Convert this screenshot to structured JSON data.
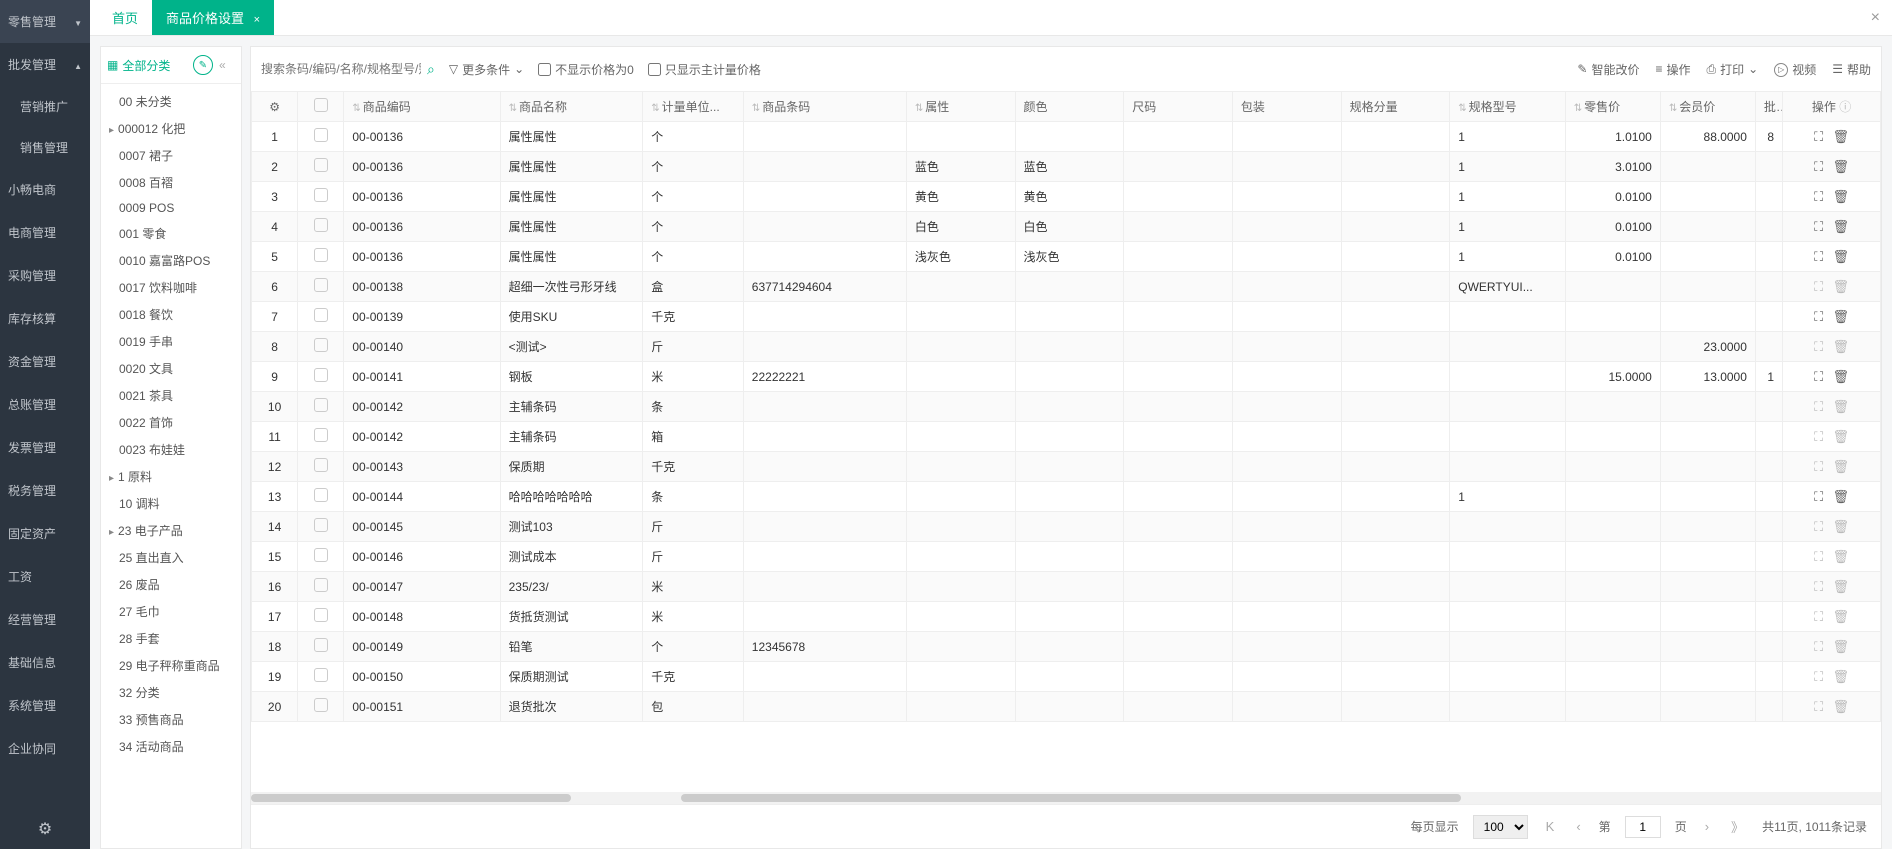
{
  "sidebar": {
    "items": [
      {
        "label": "零售管理",
        "caret": "down"
      },
      {
        "label": "批发管理",
        "caret": "up",
        "children": [
          {
            "label": "营销推广"
          },
          {
            "label": "销售管理"
          }
        ]
      },
      {
        "label": "小畅电商"
      },
      {
        "label": "电商管理"
      },
      {
        "label": "采购管理"
      },
      {
        "label": "库存核算"
      },
      {
        "label": "资金管理"
      },
      {
        "label": "总账管理"
      },
      {
        "label": "发票管理"
      },
      {
        "label": "税务管理"
      },
      {
        "label": "固定资产"
      },
      {
        "label": "工资"
      },
      {
        "label": "经营管理"
      },
      {
        "label": "基础信息"
      },
      {
        "label": "系统管理"
      },
      {
        "label": "企业协同"
      }
    ]
  },
  "tabs": {
    "home": "首页",
    "active": "商品价格设置",
    "close_icon": "×"
  },
  "tree": {
    "title": "全部分类",
    "items": [
      {
        "label": "00 未分类"
      },
      {
        "label": "000012 化把",
        "expandable": true
      },
      {
        "label": "0007 裙子"
      },
      {
        "label": "0008 百褶"
      },
      {
        "label": "0009 POS"
      },
      {
        "label": "001 零食"
      },
      {
        "label": "0010 嘉富路POS"
      },
      {
        "label": "0017 饮料咖啡"
      },
      {
        "label": "0018 餐饮"
      },
      {
        "label": "0019 手串"
      },
      {
        "label": "0020 文具"
      },
      {
        "label": "0021 茶具"
      },
      {
        "label": "0022 首饰"
      },
      {
        "label": "0023 布娃娃"
      },
      {
        "label": "1 原料",
        "expandable": true
      },
      {
        "label": "10 调料"
      },
      {
        "label": "23 电子产品",
        "expandable": true
      },
      {
        "label": "25 直出直入"
      },
      {
        "label": "26 废品"
      },
      {
        "label": "27 毛巾"
      },
      {
        "label": "28 手套"
      },
      {
        "label": "29 电子秤称重商品"
      },
      {
        "label": "32 分类"
      },
      {
        "label": "33 预售商品"
      },
      {
        "label": "34 活动商品"
      }
    ]
  },
  "toolbar": {
    "search_placeholder": "搜索条码/编码/名称/规格型号/别名",
    "more_conditions": "更多条件",
    "hide_zero": "不显示价格为0",
    "only_main_unit": "只显示主计量价格",
    "smart_edit": "智能改价",
    "operate": "操作",
    "print": "打印",
    "video": "视频",
    "help": "帮助"
  },
  "columns": {
    "gear": "⚙",
    "code": "商品编码",
    "name": "商品名称",
    "unit": "计量单位...",
    "barcode": "商品条码",
    "attr": "属性",
    "color": "颜色",
    "size": "尺码",
    "pack": "包装",
    "spec_weight": "规格分量",
    "spec_model": "规格型号",
    "retail": "零售价",
    "member": "会员价",
    "wholesale": "批",
    "ops": "操作"
  },
  "rows": [
    {
      "n": 1,
      "code": "00-00136",
      "name": "属性属性",
      "unit": "个",
      "barcode": "",
      "attr": "",
      "color": "",
      "spec_model": "1",
      "retail": "1.0100",
      "member": "88.0000",
      "wholesale": "8",
      "opActive": true
    },
    {
      "n": 2,
      "code": "00-00136",
      "name": "属性属性",
      "unit": "个",
      "barcode": "",
      "attr": "蓝色",
      "color": "蓝色",
      "spec_model": "1",
      "retail": "3.0100",
      "member": "",
      "opActive": true
    },
    {
      "n": 3,
      "code": "00-00136",
      "name": "属性属性",
      "unit": "个",
      "barcode": "",
      "attr": "黄色",
      "color": "黄色",
      "spec_model": "1",
      "retail": "0.0100",
      "member": "",
      "opActive": true
    },
    {
      "n": 4,
      "code": "00-00136",
      "name": "属性属性",
      "unit": "个",
      "barcode": "",
      "attr": "白色",
      "color": "白色",
      "spec_model": "1",
      "retail": "0.0100",
      "member": "",
      "opActive": true
    },
    {
      "n": 5,
      "code": "00-00136",
      "name": "属性属性",
      "unit": "个",
      "barcode": "",
      "attr": "浅灰色",
      "color": "浅灰色",
      "spec_model": "1",
      "retail": "0.0100",
      "member": "",
      "opActive": true
    },
    {
      "n": 6,
      "code": "00-00138",
      "name": "超细一次性弓形牙线",
      "unit": "盒",
      "barcode": "637714294604",
      "attr": "",
      "color": "",
      "spec_model": "QWERTYUI...",
      "retail": "",
      "member": "",
      "opActive": false
    },
    {
      "n": 7,
      "code": "00-00139",
      "name": "使用SKU",
      "unit": "千克",
      "barcode": "",
      "attr": "",
      "color": "",
      "spec_model": "",
      "retail": "",
      "member": "",
      "opActive": true
    },
    {
      "n": 8,
      "code": "00-00140",
      "name": "<测试>",
      "unit": "斤",
      "barcode": "",
      "attr": "",
      "color": "",
      "spec_model": "",
      "retail": "",
      "member": "23.0000",
      "opActive": false
    },
    {
      "n": 9,
      "code": "00-00141",
      "name": "钢板",
      "unit": "米",
      "barcode": "22222221",
      "attr": "",
      "color": "",
      "spec_model": "",
      "retail": "15.0000",
      "member": "13.0000",
      "wholesale": "1",
      "opActive": true
    },
    {
      "n": 10,
      "code": "00-00142",
      "name": "主辅条码",
      "unit": "条",
      "barcode": "",
      "attr": "",
      "color": "",
      "spec_model": "",
      "retail": "",
      "member": "",
      "opActive": false
    },
    {
      "n": 11,
      "code": "00-00142",
      "name": "主辅条码",
      "unit": "箱",
      "barcode": "",
      "attr": "",
      "color": "",
      "spec_model": "",
      "retail": "",
      "member": "",
      "opActive": false
    },
    {
      "n": 12,
      "code": "00-00143",
      "name": "保质期",
      "unit": "千克",
      "barcode": "",
      "attr": "",
      "color": "",
      "spec_model": "",
      "retail": "",
      "member": "",
      "opActive": false
    },
    {
      "n": 13,
      "code": "00-00144",
      "name": "哈哈哈哈哈哈哈",
      "unit": "条",
      "barcode": "",
      "attr": "",
      "color": "",
      "spec_model": "1",
      "retail": "",
      "member": "",
      "opActive": true
    },
    {
      "n": 14,
      "code": "00-00145",
      "name": "测试103",
      "unit": "斤",
      "barcode": "",
      "attr": "",
      "color": "",
      "spec_model": "",
      "retail": "",
      "member": "",
      "opActive": false
    },
    {
      "n": 15,
      "code": "00-00146",
      "name": "测试成本",
      "unit": "斤",
      "barcode": "",
      "attr": "",
      "color": "",
      "spec_model": "",
      "retail": "",
      "member": "",
      "opActive": false
    },
    {
      "n": 16,
      "code": "00-00147",
      "name": "235/23/",
      "unit": "米",
      "barcode": "",
      "attr": "",
      "color": "",
      "spec_model": "",
      "retail": "",
      "member": "",
      "opActive": false
    },
    {
      "n": 17,
      "code": "00-00148",
      "name": "货抵货测试",
      "unit": "米",
      "barcode": "",
      "attr": "",
      "color": "",
      "spec_model": "",
      "retail": "",
      "member": "",
      "opActive": false
    },
    {
      "n": 18,
      "code": "00-00149",
      "name": "铅笔",
      "unit": "个",
      "barcode": "12345678",
      "attr": "",
      "color": "",
      "spec_model": "",
      "retail": "",
      "member": "",
      "opActive": false
    },
    {
      "n": 19,
      "code": "00-00150",
      "name": "保质期测试",
      "unit": "千克",
      "barcode": "",
      "attr": "",
      "color": "",
      "spec_model": "",
      "retail": "",
      "member": "",
      "opActive": false
    },
    {
      "n": 20,
      "code": "00-00151",
      "name": "退货批次",
      "unit": "包",
      "barcode": "",
      "attr": "",
      "color": "",
      "spec_model": "",
      "retail": "",
      "member": "",
      "opActive": false
    }
  ],
  "pager": {
    "per_page_label": "每页显示",
    "page_size": "100",
    "page_label_prefix": "第",
    "current_page": "1",
    "page_label_suffix": "页",
    "summary": "共11页, 1011条记录"
  }
}
